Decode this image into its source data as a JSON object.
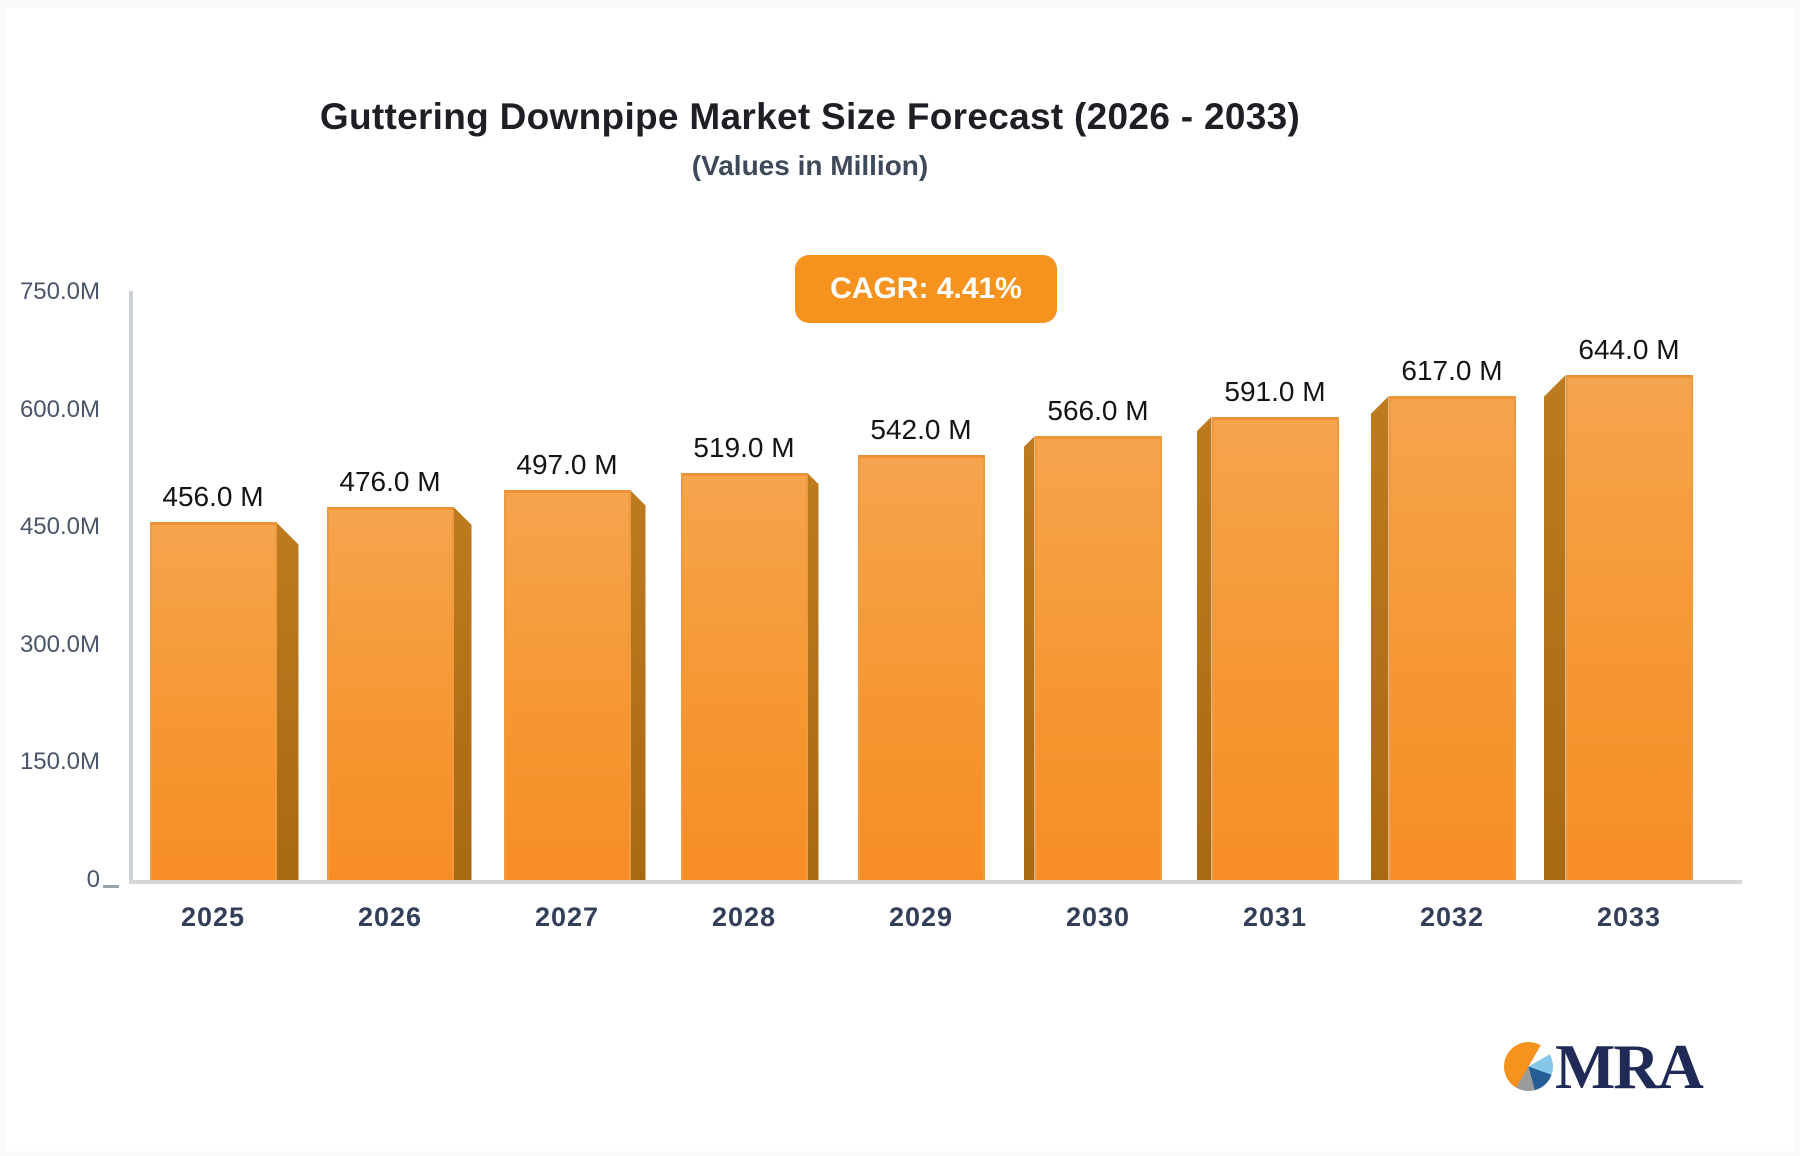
{
  "header": {
    "title": "Guttering Downpipe Market Size Forecast (2026 - 2033)",
    "subtitle": "(Values in Million)"
  },
  "badge": {
    "label": "CAGR: 4.41%"
  },
  "chart_data": {
    "type": "bar",
    "title": "Guttering Downpipe Market Size Forecast (2026 - 2033)",
    "subtitle": "(Values in Million)",
    "categories": [
      "2025",
      "2026",
      "2027",
      "2028",
      "2029",
      "2030",
      "2031",
      "2032",
      "2033"
    ],
    "values": [
      456,
      476,
      497,
      519,
      542,
      566,
      591,
      617,
      644
    ],
    "bar_labels": [
      "456.0 M",
      "476.0 M",
      "497.0 M",
      "519.0 M",
      "542.0 M",
      "566.0 M",
      "591.0 M",
      "617.0 M",
      "644.0 M"
    ],
    "unit": "Million",
    "cagr": "4.41%",
    "ylim": [
      0,
      750
    ],
    "yticks": [
      {
        "label": "750.0M",
        "value": 750
      },
      {
        "label": "600.0M",
        "value": 600
      },
      {
        "label": "450.0M",
        "value": 450
      },
      {
        "label": "300.0M",
        "value": 300
      },
      {
        "label": "150.0M",
        "value": 150
      },
      {
        "label": "0",
        "value": 0
      }
    ],
    "grid": false,
    "legend": false,
    "style": "3d perspective bars, side shadow faces outward from center bar",
    "colors": {
      "bar_top": "#F5A44E",
      "bar_bottom": "#F78D26",
      "bar_side": "#B06E19",
      "bar_edge": "#EE9238",
      "axis": "#CDD2D8",
      "value_label": "#121418",
      "tick_label": "#4A5569",
      "category_label": "#333F58",
      "badge_bg": "#F6921E",
      "badge_text": "#FFFFFF"
    }
  },
  "logo": {
    "text": "MRA",
    "colors": {
      "text": "#1F2A56",
      "pie_orange": "#F6921E",
      "pie_white": "#FFFFFF",
      "pie_lightblue": "#85C6E9",
      "pie_navy": "#225E93",
      "pie_gray": "#9B9B9D"
    }
  }
}
